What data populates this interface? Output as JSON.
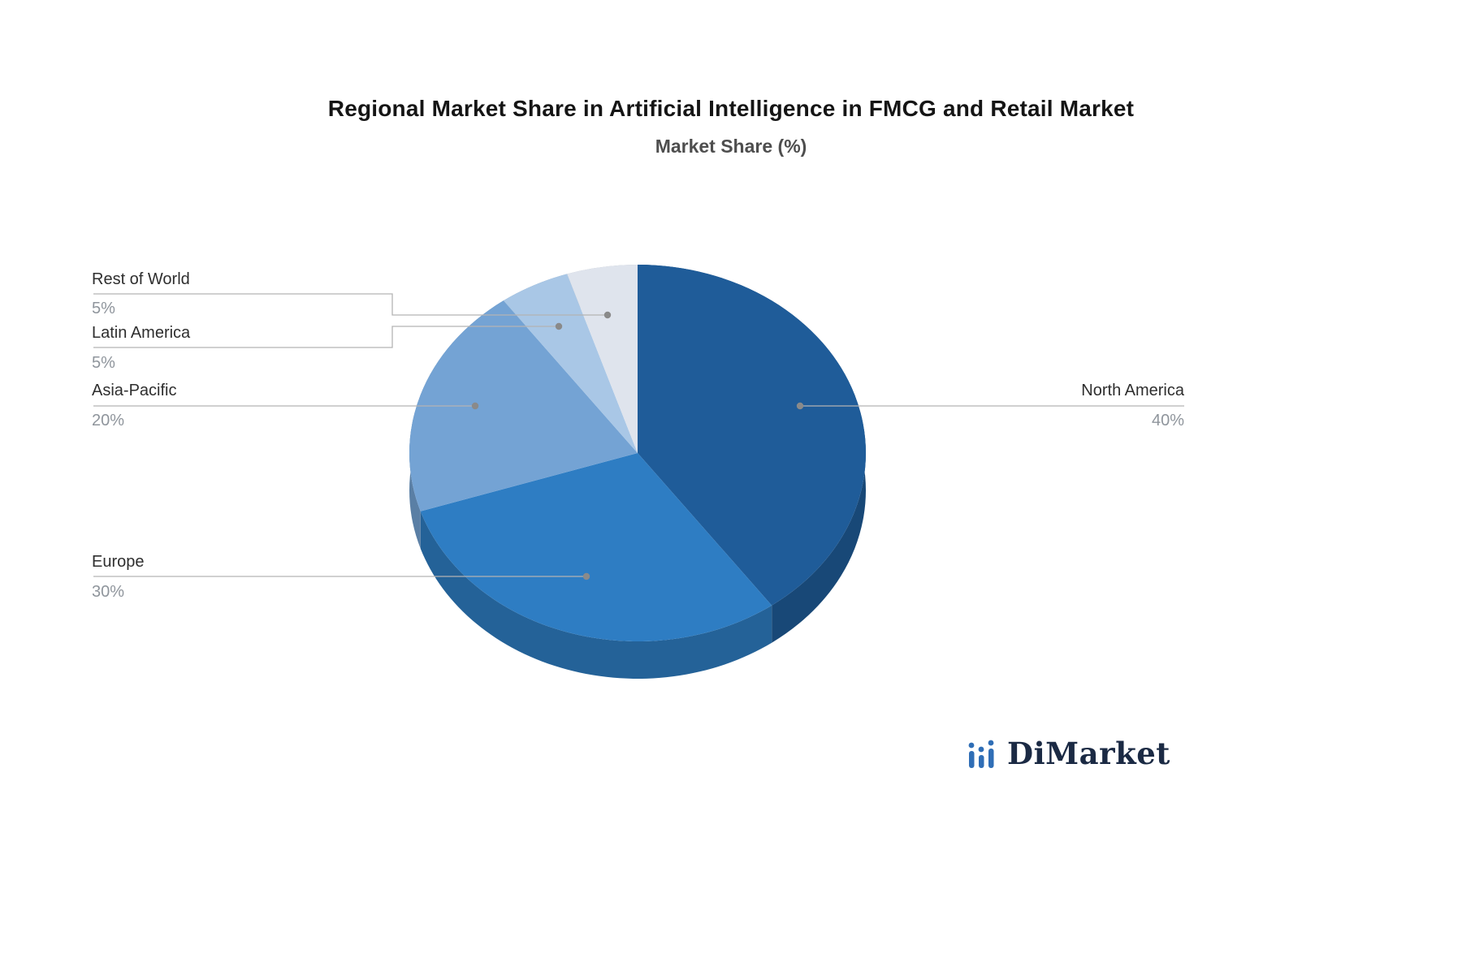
{
  "chart_data": {
    "type": "pie",
    "style": "3d-pie",
    "title": "Regional Market Share in Artificial Intelligence in FMCG and Retail Market",
    "subtitle": "Market Share (%)",
    "categories": [
      "North America",
      "Europe",
      "Asia-Pacific",
      "Latin America",
      "Rest of World"
    ],
    "values": [
      40,
      30,
      20,
      5,
      5
    ],
    "labels": [
      "40%",
      "30%",
      "20%",
      "5%",
      "5%"
    ],
    "colors": [
      "#1f5c99",
      "#2e7dc3",
      "#74a3d4",
      "#a9c7e6",
      "#dfe4ed"
    ],
    "legend_position": "none",
    "start_angle_deg": 0,
    "direction": "clockwise",
    "connector_color": "#b3b3b3",
    "connector_dot_color": "#8a8a8a"
  },
  "branding": {
    "logo_text": "DiMarket",
    "logo_icon": "bar-chart-icon",
    "logo_icon_color": "#2f6eb6",
    "logo_text_color": "#1b2a44"
  }
}
